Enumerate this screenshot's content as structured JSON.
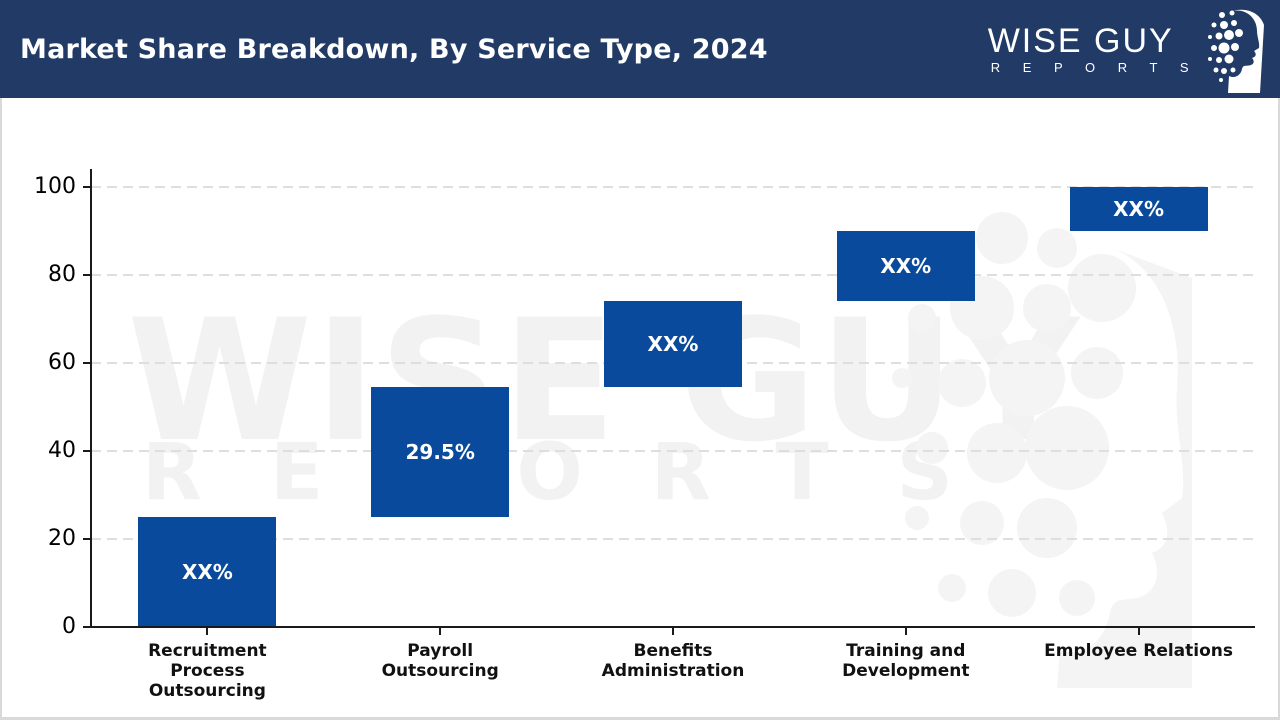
{
  "header": {
    "title": "Market Share Breakdown, By Service Type, 2024",
    "background_color": "#213a66",
    "logo": {
      "line1": "WISE GUY",
      "line2": "R E P O R T S"
    }
  },
  "watermark": {
    "line1": "WISE GUY",
    "line2": "REPORTS"
  },
  "chart_data": {
    "type": "bar",
    "subtype": "floating-waterfall",
    "title": "Market Share Breakdown, By Service Type, 2024",
    "xlabel": "",
    "ylabel": "",
    "ylim": [
      0,
      105
    ],
    "yticks": [
      0,
      20,
      40,
      60,
      80,
      100
    ],
    "grid": "horizontal-dashed",
    "legend": "none",
    "bar_color": "#0a4a9c",
    "categories": [
      "Recruitment Process Outsourcing",
      "Payroll Outsourcing",
      "Benefits Administration",
      "Training and Development",
      "Employee Relations"
    ],
    "bars": [
      {
        "category": "Recruitment Process Outsourcing",
        "category_lines": [
          "Recruitment",
          "Process",
          "Outsourcing"
        ],
        "label": "XX%",
        "start": 0,
        "end": 25,
        "increment": 25
      },
      {
        "category": "Payroll Outsourcing",
        "category_lines": [
          "Payroll",
          "Outsourcing"
        ],
        "label": "29.5%",
        "start": 25,
        "end": 54.5,
        "increment": 29.5
      },
      {
        "category": "Benefits Administration",
        "category_lines": [
          "Benefits",
          "Administration"
        ],
        "label": "XX%",
        "start": 54.5,
        "end": 74,
        "increment": 19.5
      },
      {
        "category": "Training and Development",
        "category_lines": [
          "Training and",
          "Development"
        ],
        "label": "XX%",
        "start": 74,
        "end": 90,
        "increment": 16
      },
      {
        "category": "Employee Relations",
        "category_lines": [
          "Employee Relations"
        ],
        "label": "XX%",
        "start": 90,
        "end": 100,
        "increment": 10
      }
    ]
  }
}
